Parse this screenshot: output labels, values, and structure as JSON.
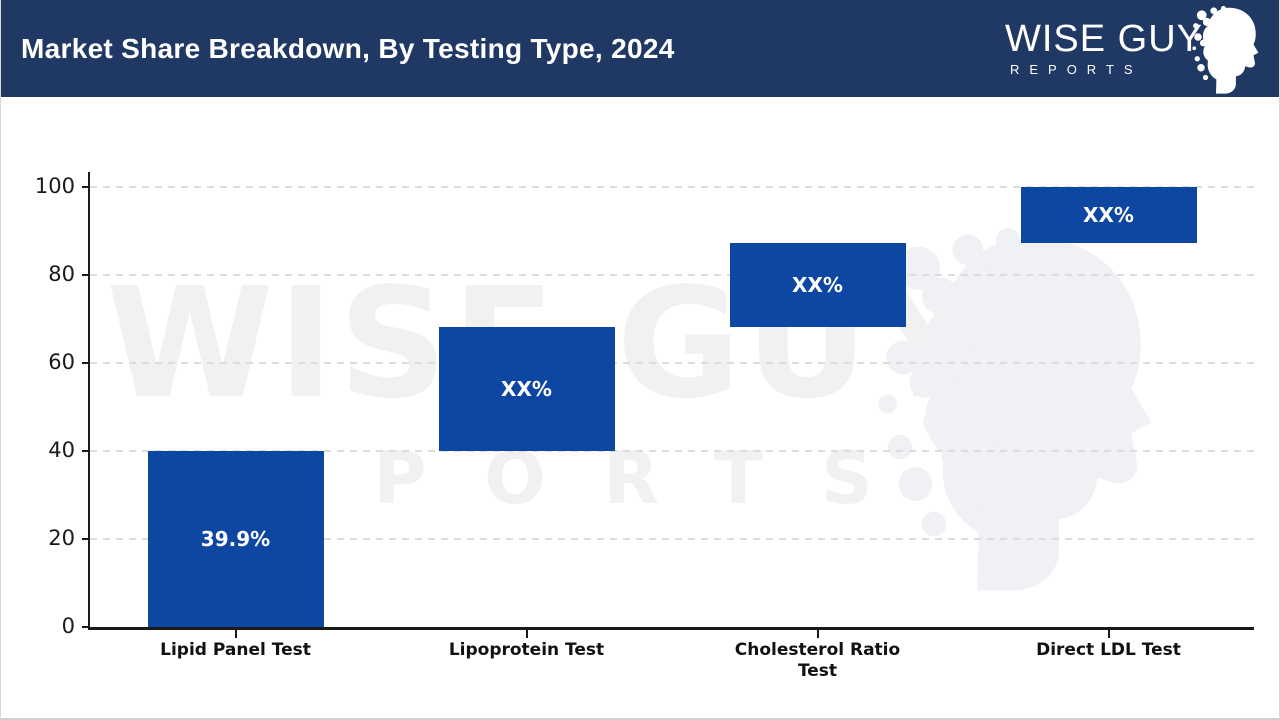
{
  "header": {
    "title": "Market Share Breakdown, By Testing Type, 2024",
    "logo": {
      "name": "WISE GUY",
      "sub": "REPORTS"
    }
  },
  "watermark": {
    "name": "WISE GUY",
    "sub": "REPORTS"
  },
  "colors": {
    "header_bg": "#1f3864",
    "bar": "#0d47a1",
    "bar_label": "#ffffff",
    "grid": "#dcdcdc",
    "axis": "#1a1a1a",
    "watermark": "#f1f1f1"
  },
  "chart_data": {
    "type": "bar",
    "subtype": "waterfall",
    "title": "Market Share Breakdown, By Testing Type, 2024",
    "categories": [
      "Lipid Panel Test",
      "Lipoprotein Test",
      "Cholesterol Ratio Test",
      "Direct LDL Test"
    ],
    "series": [
      {
        "name": "Market Share",
        "segments": [
          {
            "start": 0,
            "end": 39.9,
            "label": "39.9%"
          },
          {
            "start": 39.9,
            "end": 68.2,
            "label": "XX%"
          },
          {
            "start": 68.2,
            "end": 87.3,
            "label": "XX%"
          },
          {
            "start": 87.3,
            "end": 100,
            "label": "XX%"
          }
        ]
      }
    ],
    "xlabel": "",
    "ylabel": "",
    "ylim": [
      0,
      100
    ],
    "yticks": [
      0,
      20,
      40,
      60,
      80,
      100
    ],
    "grid": "dashed-horizontal",
    "legend": "none"
  }
}
